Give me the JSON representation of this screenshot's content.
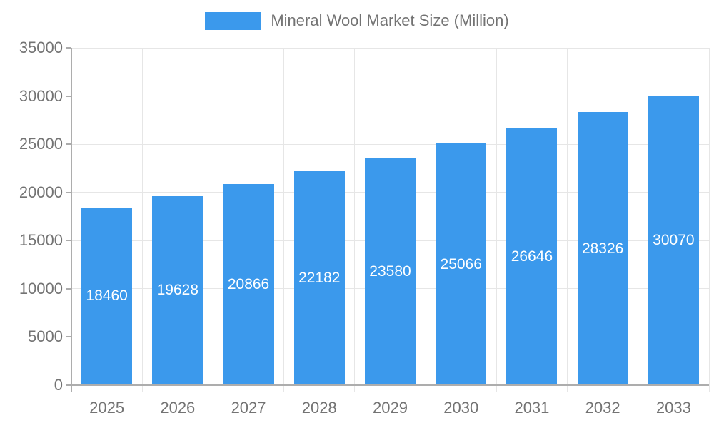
{
  "chart_data": {
    "type": "bar",
    "title": "Mineral Wool Market Size (Million)",
    "legend_entries": [
      "Mineral Wool Market Size (Million)"
    ],
    "legend_position": "top",
    "categories": [
      "2025",
      "2026",
      "2027",
      "2028",
      "2029",
      "2030",
      "2031",
      "2032",
      "2033"
    ],
    "values": [
      18460,
      19628,
      20866,
      22182,
      23580,
      25066,
      26646,
      28326,
      30070
    ],
    "xlabel": "",
    "ylabel": "",
    "ylim": [
      0,
      35000
    ],
    "ytick_step": 5000,
    "yticks": [
      0,
      5000,
      10000,
      15000,
      20000,
      25000,
      30000,
      35000
    ],
    "grid": true,
    "value_labels_position": "inside-center"
  },
  "colors": {
    "bar": "#3B99EC",
    "bar_value_label": "#FFFFFF",
    "axis_text": "#737373",
    "grid_line": "#E6E6E6",
    "axis_line": "#ADADAD",
    "y_tick": "#ABABAB",
    "background": "#FFFFFF"
  }
}
